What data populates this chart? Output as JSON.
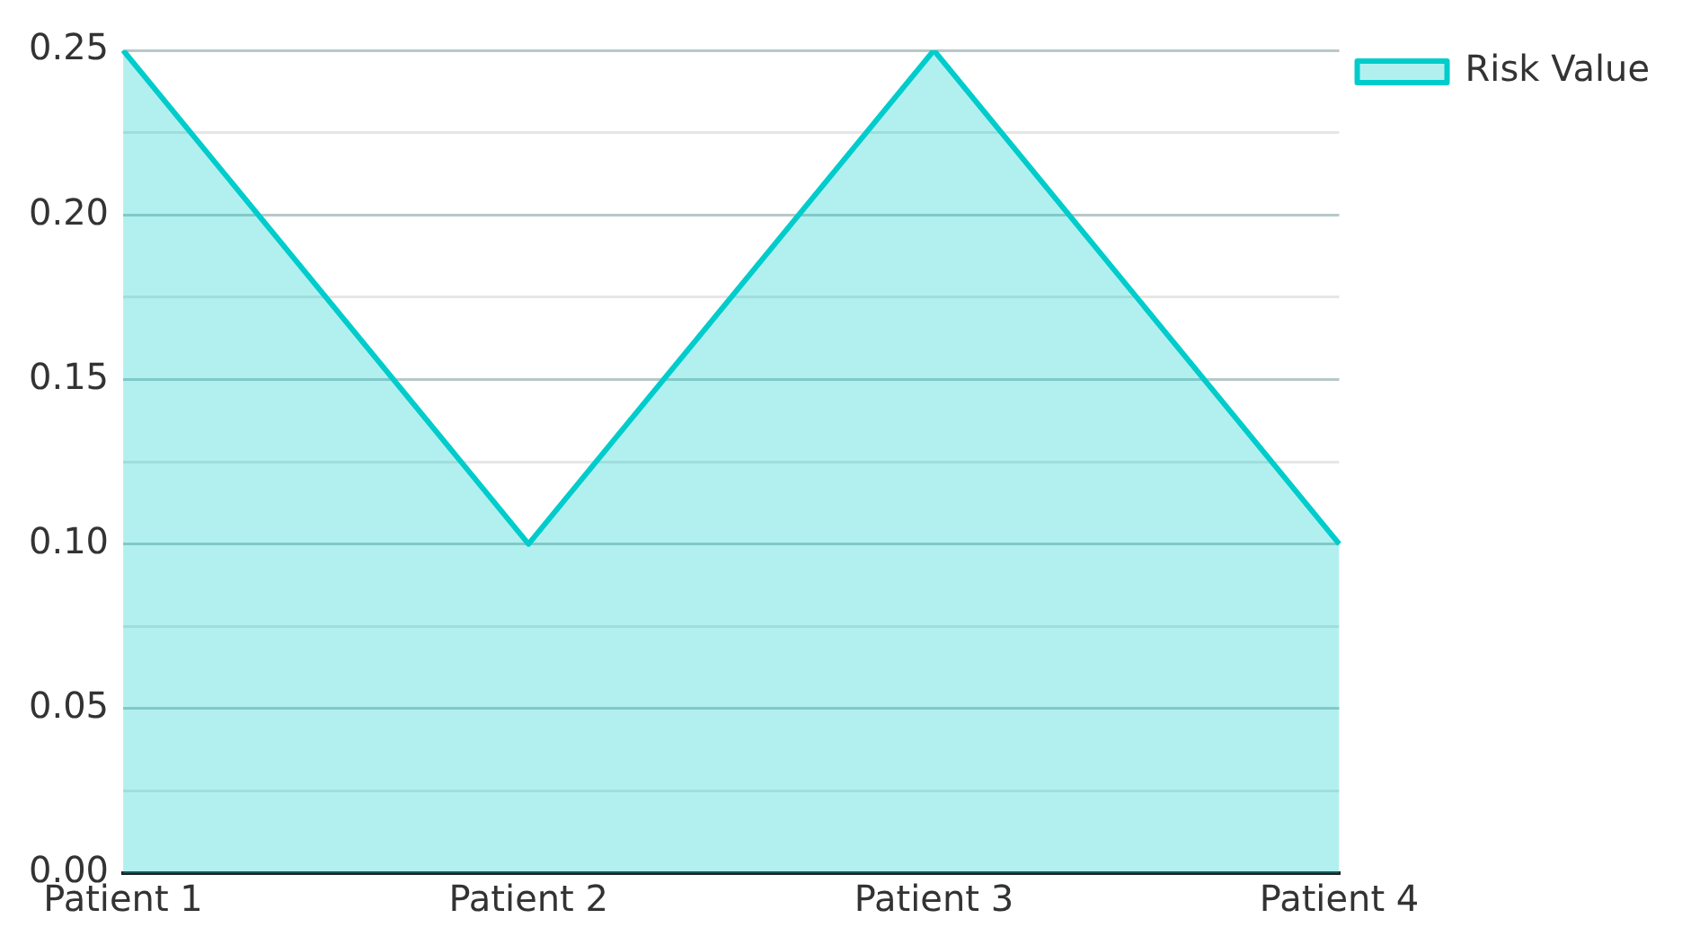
{
  "chart_data": {
    "type": "area",
    "categories": [
      "Patient 1",
      "Patient 2",
      "Patient 3",
      "Patient 4"
    ],
    "series": [
      {
        "name": "Risk Value",
        "color": "#00cccc",
        "values": [
          0.25,
          0.1,
          0.25,
          0.1
        ]
      }
    ],
    "ylim": [
      0,
      0.25
    ],
    "yticks": [
      {
        "value": 0,
        "label": "0.00"
      },
      {
        "value": 0.025,
        "label": null
      },
      {
        "value": 0.05,
        "label": "0.05"
      },
      {
        "value": 0.075,
        "label": null
      },
      {
        "value": 0.1,
        "label": "0.10"
      },
      {
        "value": 0.125,
        "label": null
      },
      {
        "value": 0.15,
        "label": "0.15"
      },
      {
        "value": 0.175,
        "label": null
      },
      {
        "value": 0.2,
        "label": "0.20"
      },
      {
        "value": 0.225,
        "label": null
      },
      {
        "value": 0.25,
        "label": "0.25"
      }
    ],
    "grid": "y",
    "legend": "top right"
  }
}
